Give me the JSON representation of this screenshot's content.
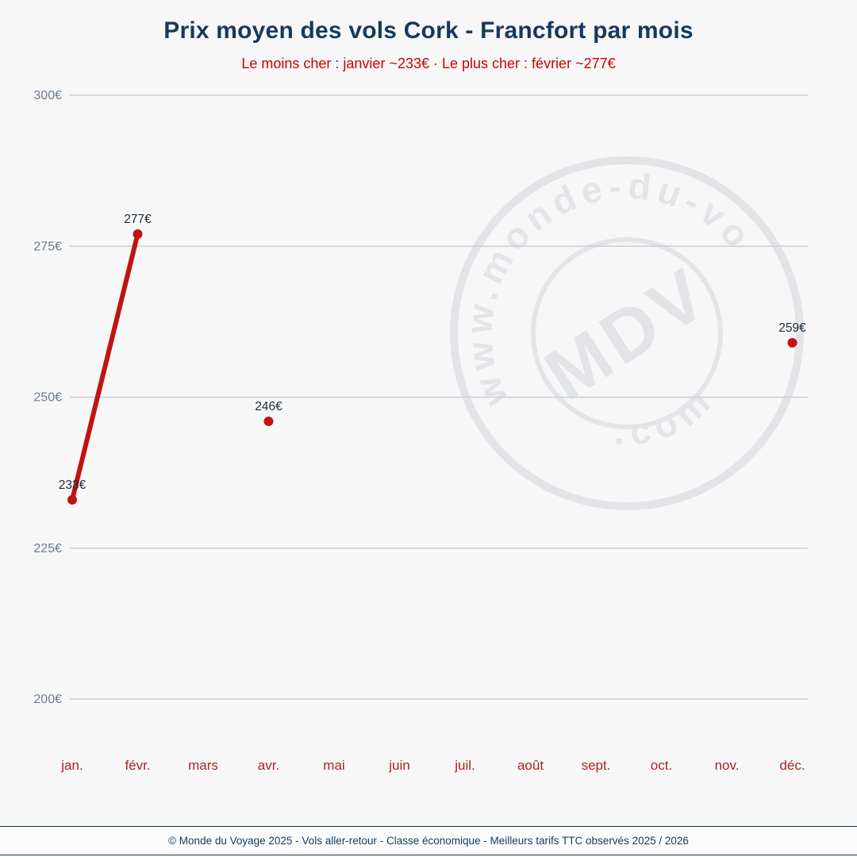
{
  "page": {
    "title": "Prix moyen des vols Cork - Francfort par mois",
    "subtitle": "Le moins cher : janvier ~233€ · Le plus cher : février ~277€",
    "footer": "© Monde du Voyage 2025 - Vols aller-retour - Classe économique - Meilleurs tarifs TTC observés 2025 / 2026"
  },
  "watermark": {
    "arc_text": "www.monde-du-voyage",
    "bottom_text": ".com",
    "initials": "MDV"
  },
  "colors": {
    "title": "#16395f",
    "subtitle": "#cc0000",
    "grid": "#c7cfd8",
    "ytick_label": "#6e7b8c",
    "month_label": "#a72525",
    "line": "#c21212",
    "point": "#c21212",
    "point_label": "#1b2a38",
    "background": "#f7f7f8",
    "footer": "#16395f",
    "watermark": "#b9bec6"
  },
  "chart_data": {
    "type": "line",
    "title": "Prix moyen des vols Cork - Francfort par mois",
    "subtitle": "Le moins cher : janvier ~233€ · Le plus cher : février ~277€",
    "categories": [
      "jan.",
      "févr.",
      "mars",
      "avr.",
      "mai",
      "juin",
      "juil.",
      "août",
      "sept.",
      "oct.",
      "nov.",
      "déc."
    ],
    "values": [
      233,
      277,
      null,
      246,
      null,
      null,
      null,
      null,
      null,
      null,
      null,
      259
    ],
    "point_labels": [
      "233€",
      "277€",
      null,
      "246€",
      null,
      null,
      null,
      null,
      null,
      null,
      null,
      "259€"
    ],
    "unit": "€",
    "ylim": [
      200,
      300
    ],
    "yticks": [
      300,
      275,
      250,
      225,
      200
    ],
    "ytick_labels": [
      "300€",
      "275€",
      "250€",
      "225€",
      "200€"
    ],
    "grid": true,
    "legend": false,
    "cheapest": {
      "month": "janvier",
      "value": 233
    },
    "most_expensive": {
      "month": "février",
      "value": 277
    }
  }
}
